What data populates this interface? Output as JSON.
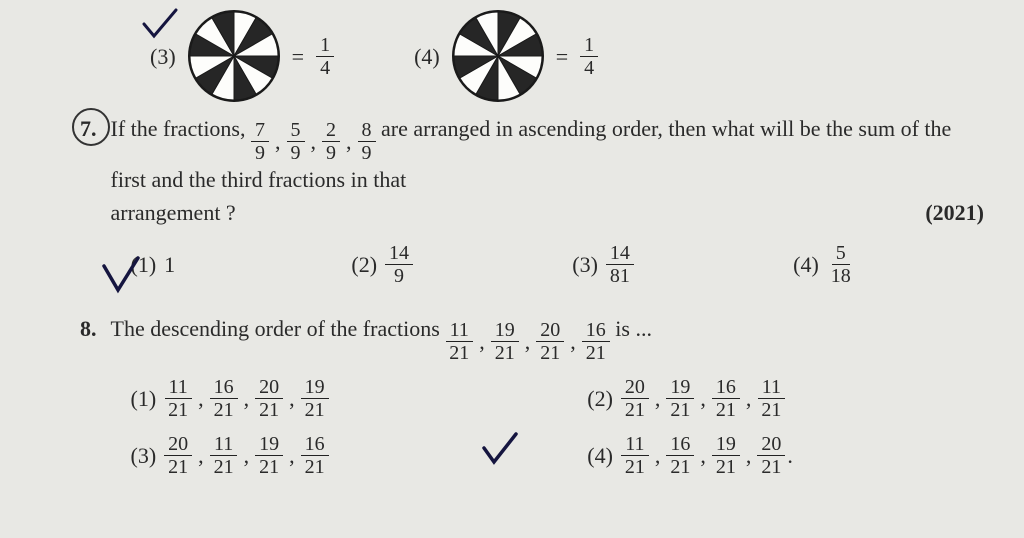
{
  "colors": {
    "ink": "#1f1f1f",
    "paper": "#e8e8e4",
    "pie_dark": "#262626",
    "pie_light": "#fdfdfb",
    "pie_border": "#1a1a1a",
    "pen": "rgba(20,20,60,0.85)"
  },
  "top_options": {
    "opt3": {
      "label": "(3)",
      "segments": 12,
      "shaded_indices": [
        1,
        3,
        5,
        7,
        9,
        11
      ],
      "equals": {
        "num": "1",
        "den": "4"
      }
    },
    "opt4": {
      "label": "(4)",
      "segments": 12,
      "shaded_indices": [
        0,
        2,
        4,
        6,
        8,
        10
      ],
      "equals": {
        "num": "1",
        "den": "4"
      }
    }
  },
  "q7": {
    "number": "7.",
    "lead": "If the fractions, ",
    "fracs": [
      {
        "num": "7",
        "den": "9"
      },
      {
        "num": "5",
        "den": "9"
      },
      {
        "num": "2",
        "den": "9"
      },
      {
        "num": "8",
        "den": "9"
      }
    ],
    "mid": " are arranged in ascending order, then what will be the sum of the first and the third fractions in that",
    "arr": "arrangement ?",
    "year": "(2021)",
    "options": [
      {
        "label": "(1)",
        "plain": "1"
      },
      {
        "label": "(2)",
        "frac": {
          "num": "14",
          "den": "9"
        }
      },
      {
        "label": "(3)",
        "frac": {
          "num": "14",
          "den": "81"
        }
      },
      {
        "label": "(4)",
        "frac": {
          "num": "5",
          "den": "18"
        }
      }
    ]
  },
  "q8": {
    "number": "8.",
    "lead": "The descending order of the fractions ",
    "fracs": [
      {
        "num": "11",
        "den": "21"
      },
      {
        "num": "19",
        "den": "21"
      },
      {
        "num": "20",
        "den": "21"
      },
      {
        "num": "16",
        "den": "21"
      }
    ],
    "tail": " is ...",
    "options": [
      {
        "label": "(1)",
        "list": [
          {
            "num": "11",
            "den": "21"
          },
          {
            "num": "16",
            "den": "21"
          },
          {
            "num": "20",
            "den": "21"
          },
          {
            "num": "19",
            "den": "21"
          }
        ]
      },
      {
        "label": "(2)",
        "list": [
          {
            "num": "20",
            "den": "21"
          },
          {
            "num": "19",
            "den": "21"
          },
          {
            "num": "16",
            "den": "21"
          },
          {
            "num": "11",
            "den": "21"
          }
        ]
      },
      {
        "label": "(3)",
        "list": [
          {
            "num": "20",
            "den": "21"
          },
          {
            "num": "11",
            "den": "21"
          },
          {
            "num": "19",
            "den": "21"
          },
          {
            "num": "16",
            "den": "21"
          }
        ]
      },
      {
        "label": "(4)",
        "list": [
          {
            "num": "11",
            "den": "21"
          },
          {
            "num": "16",
            "den": "21"
          },
          {
            "num": "19",
            "den": "21"
          },
          {
            "num": "20",
            "den": "21"
          }
        ],
        "period": "."
      }
    ]
  },
  "pie_style": {
    "radius": 44,
    "stroke_width": 2
  }
}
